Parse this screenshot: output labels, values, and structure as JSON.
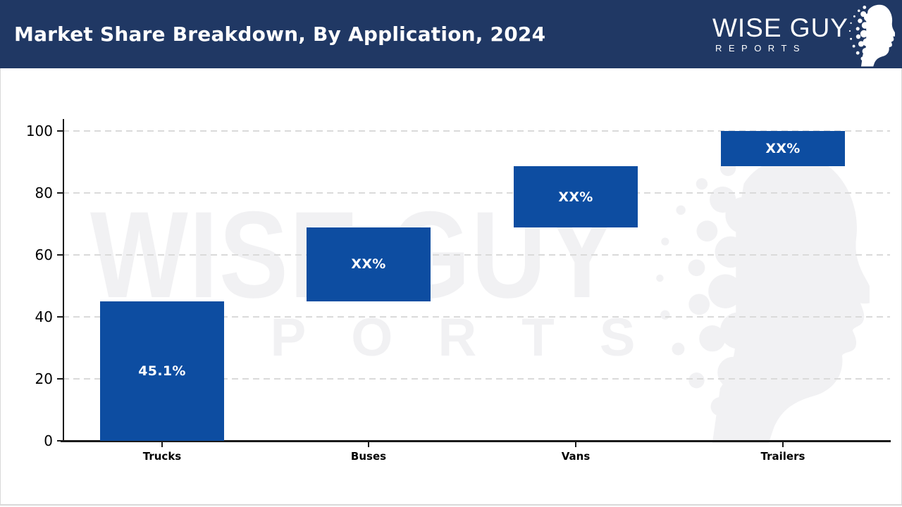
{
  "page": {
    "background": "#ffffff",
    "frame_color": "#d9d9d9"
  },
  "header": {
    "bg_color": "#203864",
    "title": "Market Share Breakdown, By Application, 2024",
    "logo": {
      "line1": "WISE GUY",
      "line2": "REPORTS",
      "icon": "dotted-face-profile",
      "color": "#ffffff"
    }
  },
  "watermark": {
    "line1": "WISE GUY",
    "line2": "REPORTS",
    "icon": "dotted-face-profile",
    "color": "#f1f1f3"
  },
  "chart_data": {
    "type": "bar",
    "variant": "waterfall",
    "title": "Market Share Breakdown, By Application, 2024",
    "categories": [
      "Trucks",
      "Buses",
      "Vans",
      "Trailers"
    ],
    "series": [
      {
        "name": "Market share (%)",
        "segments": [
          {
            "category": "Trucks",
            "start": 0,
            "end": 45.1,
            "label": "45.1%"
          },
          {
            "category": "Buses",
            "start": 45.1,
            "end": 68.8,
            "label": "XX%"
          },
          {
            "category": "Vans",
            "start": 68.8,
            "end": 88.6,
            "label": "XX%"
          },
          {
            "category": "Trailers",
            "start": 88.6,
            "end": 100,
            "label": "XX%"
          }
        ]
      }
    ],
    "xlabel": "",
    "ylabel": "",
    "ylim": [
      0,
      105
    ],
    "yticks": [
      0,
      20,
      40,
      60,
      80,
      100
    ],
    "grid": {
      "axis": "y",
      "style": "dashed",
      "color": "#dadada"
    },
    "legend": "none",
    "bar_color": "#0d4da1",
    "bar_label_color": "#ffffff",
    "axis_color": "#1a1a1a",
    "tick_label_color": "#000000"
  }
}
